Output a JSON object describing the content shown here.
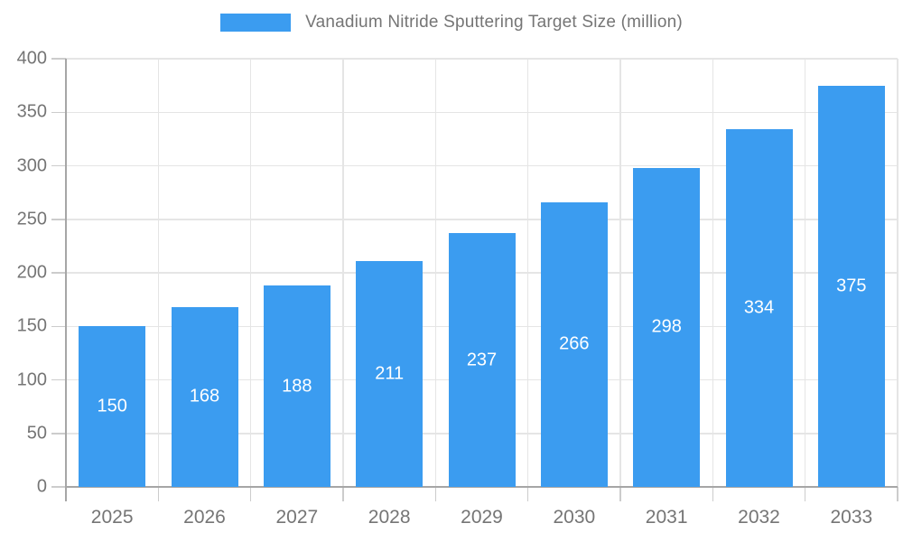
{
  "legend": {
    "label": "Vanadium Nitride Sputtering Target Size (million)"
  },
  "chart_data": {
    "type": "bar",
    "title": "Vanadium Nitride Sputtering Target Size (million)",
    "categories": [
      "2025",
      "2026",
      "2027",
      "2028",
      "2029",
      "2030",
      "2031",
      "2032",
      "2033"
    ],
    "values": [
      150,
      168,
      188,
      211,
      237,
      266,
      298,
      334,
      375
    ],
    "value_labels": [
      "150",
      "168",
      "188",
      "211",
      "237",
      "266",
      "298",
      "334",
      "375"
    ],
    "xlabel": "",
    "ylabel": "",
    "ylim": [
      0,
      400
    ],
    "y_ticks": [
      0,
      50,
      100,
      150,
      200,
      250,
      300,
      350,
      400
    ],
    "grid": true,
    "legend_position": "top",
    "colors": {
      "bar": "#3b9cf0",
      "value_label": "#ffffff",
      "axis_text": "#757575",
      "gridline": "#e5e5e5",
      "axis_line": "#a6a6a6",
      "tick": "#cccccc"
    }
  }
}
